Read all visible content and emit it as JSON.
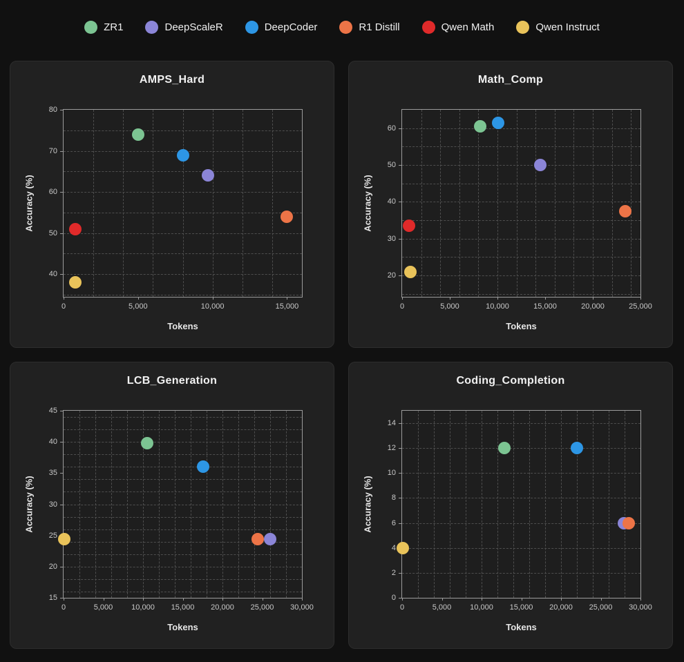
{
  "theme": {
    "page_background": "#111111",
    "card_background": "#212121",
    "plot_background": "#1e1e1e",
    "axis_color": "#9c9c9c",
    "gridline_color": "#4e4e4e",
    "tick_label_color": "#c9c9c9",
    "text_color": "#f0f0f0"
  },
  "legend": {
    "items": [
      {
        "label": "ZR1",
        "color": "#7cc492"
      },
      {
        "label": "DeepScaleR",
        "color": "#8b85d7"
      },
      {
        "label": "DeepCoder",
        "color": "#2d96e5"
      },
      {
        "label": "R1 Distill",
        "color": "#ed7447"
      },
      {
        "label": "Qwen Math",
        "color": "#e02a2a"
      },
      {
        "label": "Qwen Instruct",
        "color": "#e9c35a"
      }
    ]
  },
  "chart_data": [
    {
      "type": "scatter",
      "title": "AMPS_Hard",
      "xlabel": "Tokens",
      "ylabel": "Accuracy (%)",
      "xlim": [
        0,
        16000
      ],
      "ylim": [
        34.5,
        80
      ],
      "xticks": [
        0,
        5000,
        10000,
        15000
      ],
      "yticks": [
        40,
        50,
        60,
        70,
        80
      ],
      "grid_x_interval": 2000,
      "grid_y_interval": 5,
      "points": [
        {
          "series": "ZR1",
          "x": 5000,
          "y": 74
        },
        {
          "series": "DeepScaleR",
          "x": 9700,
          "y": 64
        },
        {
          "series": "DeepCoder",
          "x": 8000,
          "y": 69
        },
        {
          "series": "R1 Distill",
          "x": 15000,
          "y": 54
        },
        {
          "series": "Qwen Math",
          "x": 800,
          "y": 51
        },
        {
          "series": "Qwen Instruct",
          "x": 800,
          "y": 38
        }
      ]
    },
    {
      "type": "scatter",
      "title": "Math_Comp",
      "xlabel": "Tokens",
      "ylabel": "Accuracy (%)",
      "xlim": [
        0,
        25000
      ],
      "ylim": [
        14.2,
        65
      ],
      "xticks": [
        0,
        5000,
        10000,
        15000,
        20000,
        25000
      ],
      "yticks": [
        20,
        30,
        40,
        50,
        60
      ],
      "grid_x_interval": 2000,
      "grid_y_interval": 5,
      "points": [
        {
          "series": "ZR1",
          "x": 8200,
          "y": 60.5
        },
        {
          "series": "DeepScaleR",
          "x": 14500,
          "y": 50
        },
        {
          "series": "DeepCoder",
          "x": 10100,
          "y": 61.5
        },
        {
          "series": "R1 Distill",
          "x": 23400,
          "y": 37.5
        },
        {
          "series": "Qwen Math",
          "x": 750,
          "y": 33.5
        },
        {
          "series": "Qwen Instruct",
          "x": 850,
          "y": 21
        }
      ]
    },
    {
      "type": "scatter",
      "title": "LCB_Generation",
      "xlabel": "Tokens",
      "ylabel": "Accuracy (%)",
      "xlim": [
        0,
        30000
      ],
      "ylim": [
        15,
        45
      ],
      "xticks": [
        0,
        5000,
        10000,
        15000,
        20000,
        25000,
        30000
      ],
      "yticks": [
        15,
        20,
        25,
        30,
        35,
        40,
        45
      ],
      "grid_x_interval": 2000,
      "grid_y_interval": 2,
      "points": [
        {
          "series": "ZR1",
          "x": 10500,
          "y": 39.8
        },
        {
          "series": "R1 Distill",
          "x": 24400,
          "y": 24.4
        },
        {
          "series": "DeepScaleR",
          "x": 26000,
          "y": 24.4
        },
        {
          "series": "DeepCoder",
          "x": 17600,
          "y": 36
        },
        {
          "series": "Qwen Instruct",
          "x": 100,
          "y": 24.4
        }
      ]
    },
    {
      "type": "scatter",
      "title": "Coding_Completion",
      "xlabel": "Tokens",
      "ylabel": "Accuracy (%)",
      "xlim": [
        0,
        30000
      ],
      "ylim": [
        0,
        15
      ],
      "xticks": [
        0,
        5000,
        10000,
        15000,
        20000,
        25000,
        30000
      ],
      "yticks": [
        0,
        2,
        4,
        6,
        8,
        10,
        12,
        14
      ],
      "grid_x_interval": 2000,
      "grid_y_interval": 2,
      "points": [
        {
          "series": "ZR1",
          "x": 12900,
          "y": 12
        },
        {
          "series": "DeepCoder",
          "x": 22000,
          "y": 12
        },
        {
          "series": "DeepScaleR",
          "x": 27900,
          "y": 6
        },
        {
          "series": "R1 Distill",
          "x": 28500,
          "y": 6
        },
        {
          "series": "Qwen Instruct",
          "x": 100,
          "y": 4
        }
      ]
    }
  ]
}
